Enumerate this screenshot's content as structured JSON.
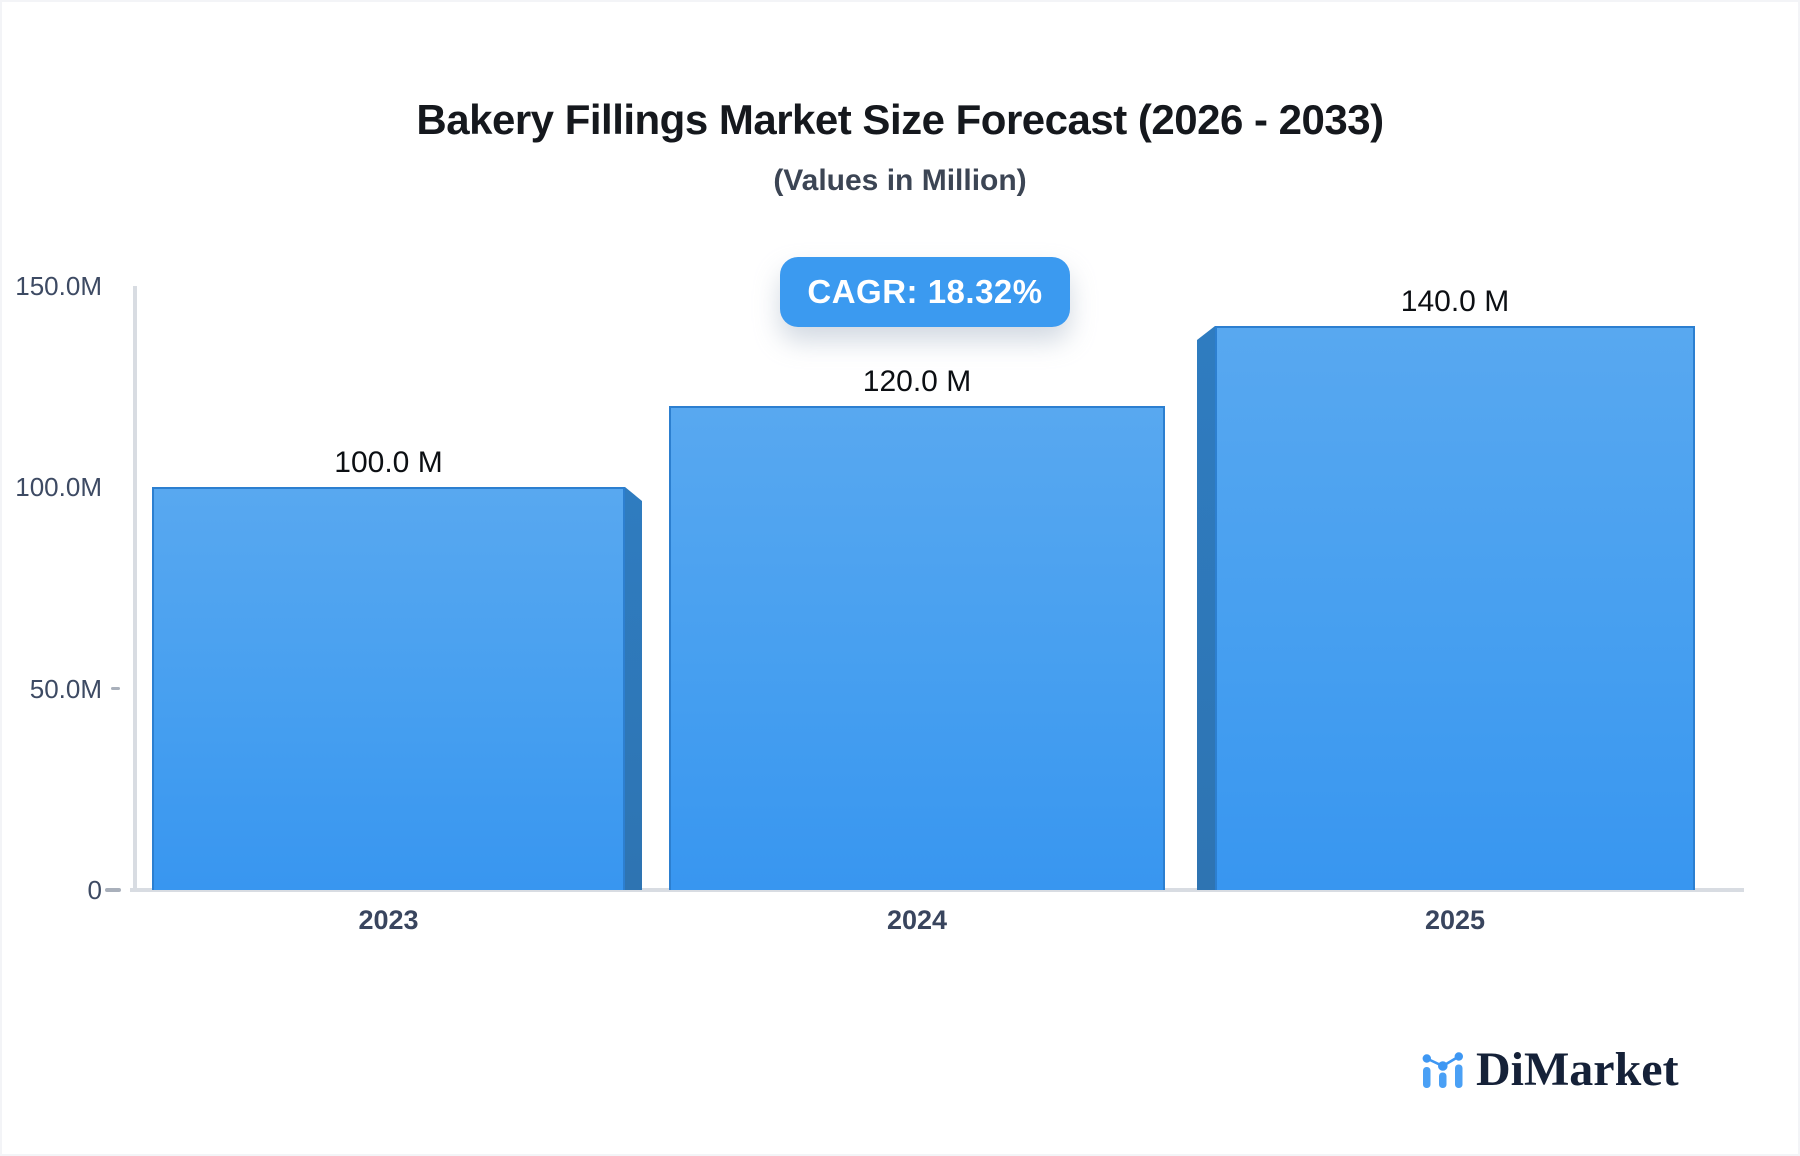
{
  "chart_data": {
    "type": "bar",
    "title": "Bakery Fillings Market Size Forecast (2026 - 2033)",
    "subtitle": "(Values in Million)",
    "unit": "Million",
    "cagr_percent": 18.32,
    "cagr_label": "CAGR: 18.32%",
    "categories": [
      "2023",
      "2024",
      "2025"
    ],
    "values": [
      100.0,
      120.0,
      140.0
    ],
    "value_labels": [
      "100.0 M",
      "120.0 M",
      "140.0 M"
    ],
    "ylim": [
      0,
      150
    ],
    "y_ticks": [
      {
        "label": "150.0M",
        "value": 150
      },
      {
        "label": "100.0M",
        "value": 100
      },
      {
        "label": "50.0M",
        "value": 50
      },
      {
        "label": "0",
        "value": 0
      }
    ],
    "grid": false,
    "legend": false,
    "colors": {
      "bar_face_top": "#58a8f0",
      "bar_face_bottom": "#3896f0",
      "bar_side": "#2e74b2",
      "bar_border": "#2c7fd0",
      "badge_bg": "#3b9af0",
      "badge_text": "#ffffff",
      "axis_line": "#d8dce2",
      "tick_label": "#3d4a63",
      "value_label": "#0c0f13",
      "title": "#15181d",
      "subtitle": "#3c4554"
    }
  },
  "brand": {
    "name": "DiMarket",
    "icon": "bar-line-chart-icon",
    "icon_color": "#4aa0f5",
    "text_color": "#152138"
  }
}
